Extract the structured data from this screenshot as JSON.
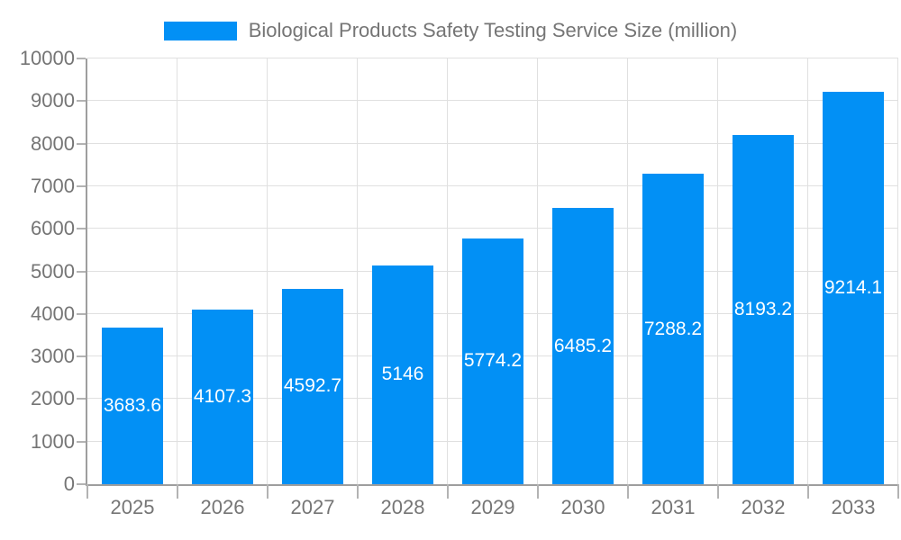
{
  "legend": {
    "label": "Biological Products Safety Testing Service Size (million)",
    "swatch_color": "#0290f5"
  },
  "chart_data": {
    "type": "bar",
    "title": "Biological Products Safety Testing Service Size (million)",
    "categories": [
      "2025",
      "2026",
      "2027",
      "2028",
      "2029",
      "2030",
      "2031",
      "2032",
      "2033"
    ],
    "values": [
      3683.6,
      4107.3,
      4592.7,
      5146,
      5774.2,
      6485.2,
      7288.2,
      8193.2,
      9214.1
    ],
    "value_labels": [
      "3683.6",
      "4107.3",
      "4592.7",
      "5146",
      "5774.2",
      "6485.2",
      "7288.2",
      "8193.2",
      "9214.1"
    ],
    "xlabel": "",
    "ylabel": "",
    "ylim": [
      0,
      10000
    ],
    "y_tick_step": 1000,
    "y_tick_labels": [
      "0",
      "1000",
      "2000",
      "3000",
      "4000",
      "5000",
      "6000",
      "7000",
      "8000",
      "9000",
      "10000"
    ],
    "grid": true,
    "legend_position": "top",
    "bar_color": "#0290f5",
    "value_label_color": "#ffffff",
    "axis_text_color": "#757575",
    "grid_color": "#e0e0e0",
    "axis_line_color": "#9e9e9e"
  }
}
